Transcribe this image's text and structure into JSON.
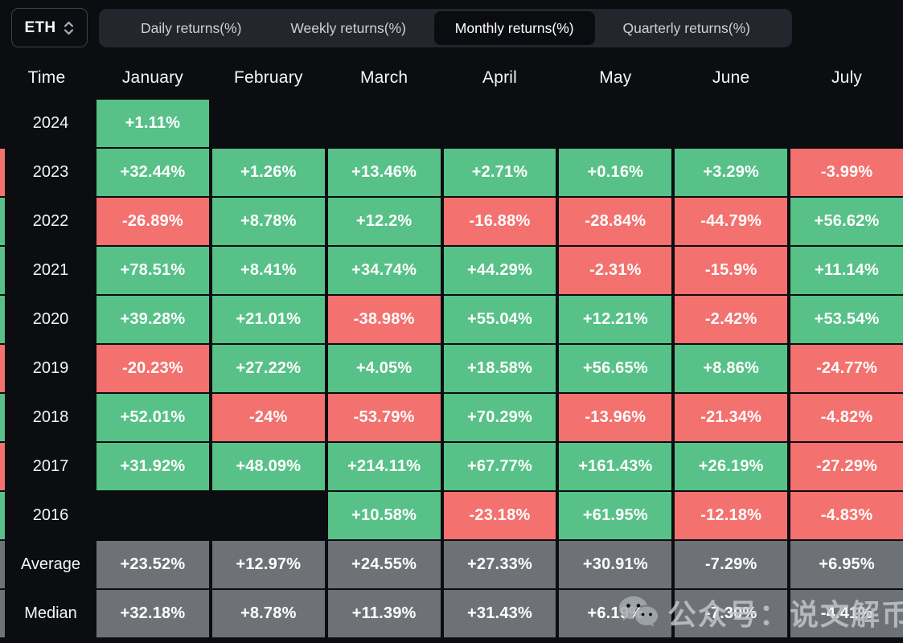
{
  "app": {
    "symbol_selector": {
      "value": "ETH"
    },
    "tabs": [
      {
        "label": "Daily returns(%)",
        "active": false
      },
      {
        "label": "Weekly returns(%)",
        "active": false
      },
      {
        "label": "Monthly returns(%)",
        "active": true
      },
      {
        "label": "Quarterly returns(%)",
        "active": false
      }
    ]
  },
  "table": {
    "headers": [
      "Time",
      "January",
      "February",
      "March",
      "April",
      "May",
      "June",
      "July"
    ],
    "rows": [
      {
        "label": "2024",
        "sliver": null,
        "cells": [
          {
            "v": "+1.11%",
            "c": "green"
          },
          null,
          null,
          null,
          null,
          null,
          null
        ]
      },
      {
        "label": "2023",
        "sliver": "red",
        "cells": [
          {
            "v": "+32.44%",
            "c": "green"
          },
          {
            "v": "+1.26%",
            "c": "green"
          },
          {
            "v": "+13.46%",
            "c": "green"
          },
          {
            "v": "+2.71%",
            "c": "green"
          },
          {
            "v": "+0.16%",
            "c": "green"
          },
          {
            "v": "+3.29%",
            "c": "green"
          },
          {
            "v": "-3.99%",
            "c": "red"
          }
        ]
      },
      {
        "label": "2022",
        "sliver": "green",
        "cells": [
          {
            "v": "-26.89%",
            "c": "red"
          },
          {
            "v": "+8.78%",
            "c": "green"
          },
          {
            "v": "+12.2%",
            "c": "green"
          },
          {
            "v": "-16.88%",
            "c": "red"
          },
          {
            "v": "-28.84%",
            "c": "red"
          },
          {
            "v": "-44.79%",
            "c": "red"
          },
          {
            "v": "+56.62%",
            "c": "green"
          }
        ]
      },
      {
        "label": "2021",
        "sliver": "green",
        "cells": [
          {
            "v": "+78.51%",
            "c": "green"
          },
          {
            "v": "+8.41%",
            "c": "green"
          },
          {
            "v": "+34.74%",
            "c": "green"
          },
          {
            "v": "+44.29%",
            "c": "green"
          },
          {
            "v": "-2.31%",
            "c": "red"
          },
          {
            "v": "-15.9%",
            "c": "red"
          },
          {
            "v": "+11.14%",
            "c": "green"
          }
        ]
      },
      {
        "label": "2020",
        "sliver": "green",
        "cells": [
          {
            "v": "+39.28%",
            "c": "green"
          },
          {
            "v": "+21.01%",
            "c": "green"
          },
          {
            "v": "-38.98%",
            "c": "red"
          },
          {
            "v": "+55.04%",
            "c": "green"
          },
          {
            "v": "+12.21%",
            "c": "green"
          },
          {
            "v": "-2.42%",
            "c": "red"
          },
          {
            "v": "+53.54%",
            "c": "green"
          }
        ]
      },
      {
        "label": "2019",
        "sliver": "red",
        "cells": [
          {
            "v": "-20.23%",
            "c": "red"
          },
          {
            "v": "+27.22%",
            "c": "green"
          },
          {
            "v": "+4.05%",
            "c": "green"
          },
          {
            "v": "+18.58%",
            "c": "green"
          },
          {
            "v": "+56.65%",
            "c": "green"
          },
          {
            "v": "+8.86%",
            "c": "green"
          },
          {
            "v": "-24.77%",
            "c": "red"
          }
        ]
      },
      {
        "label": "2018",
        "sliver": "green",
        "cells": [
          {
            "v": "+52.01%",
            "c": "green"
          },
          {
            "v": "-24%",
            "c": "red"
          },
          {
            "v": "-53.79%",
            "c": "red"
          },
          {
            "v": "+70.29%",
            "c": "green"
          },
          {
            "v": "-13.96%",
            "c": "red"
          },
          {
            "v": "-21.34%",
            "c": "red"
          },
          {
            "v": "-4.82%",
            "c": "red"
          }
        ]
      },
      {
        "label": "2017",
        "sliver": "red",
        "cells": [
          {
            "v": "+31.92%",
            "c": "green"
          },
          {
            "v": "+48.09%",
            "c": "green"
          },
          {
            "v": "+214.11%",
            "c": "green"
          },
          {
            "v": "+67.77%",
            "c": "green"
          },
          {
            "v": "+161.43%",
            "c": "green"
          },
          {
            "v": "+26.19%",
            "c": "green"
          },
          {
            "v": "-27.29%",
            "c": "red"
          }
        ]
      },
      {
        "label": "2016",
        "sliver": "green",
        "cells": [
          null,
          null,
          {
            "v": "+10.58%",
            "c": "green"
          },
          {
            "v": "-23.18%",
            "c": "red"
          },
          {
            "v": "+61.95%",
            "c": "green"
          },
          {
            "v": "-12.18%",
            "c": "red"
          },
          {
            "v": "-4.83%",
            "c": "red"
          }
        ]
      },
      {
        "label": "Average",
        "sliver": "gray",
        "cells": [
          {
            "v": "+23.52%",
            "c": "gray"
          },
          {
            "v": "+12.97%",
            "c": "gray"
          },
          {
            "v": "+24.55%",
            "c": "gray"
          },
          {
            "v": "+27.33%",
            "c": "gray"
          },
          {
            "v": "+30.91%",
            "c": "gray"
          },
          {
            "v": "-7.29%",
            "c": "gray"
          },
          {
            "v": "+6.95%",
            "c": "gray"
          }
        ]
      },
      {
        "label": "Median",
        "sliver": "gray",
        "cells": [
          {
            "v": "+32.18%",
            "c": "gray"
          },
          {
            "v": "+8.78%",
            "c": "gray"
          },
          {
            "v": "+11.39%",
            "c": "gray"
          },
          {
            "v": "+31.43%",
            "c": "gray"
          },
          {
            "v": "+6.19%",
            "c": "gray"
          },
          {
            "v": "-7.30%",
            "c": "gray"
          },
          {
            "v": "-4.41%",
            "c": "gray"
          }
        ]
      }
    ]
  },
  "watermark": {
    "text": "公众号：说文解币",
    "icon": "wechat-icon"
  },
  "colors": {
    "green": "#57c188",
    "red": "#f3716e",
    "gray": "#6e7277",
    "background": "#0b0d11",
    "tabbar_background": "#23262c",
    "active_tab_background": "#0a0c10"
  }
}
